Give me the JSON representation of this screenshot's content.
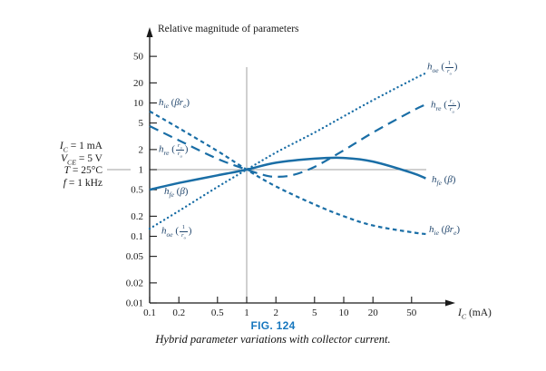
{
  "colors": {
    "curve": "#1a6ea6",
    "curve_label_text": "#24486e",
    "caption_accent": "#1777be",
    "reference_line": "#a0a0a0",
    "axis": "#1a1a1a"
  },
  "y_axis_title": "Relative magnitude of parameters",
  "conditions": [
    [
      {
        "t": "I",
        "i": 1
      },
      {
        "t": "C",
        "sub": 1,
        "i": 1
      },
      {
        "t": " = 1 mA"
      }
    ],
    [
      {
        "t": "V",
        "i": 1
      },
      {
        "t": "CE",
        "sub": 1,
        "i": 1
      },
      {
        "t": " = 5 V"
      }
    ],
    [
      {
        "t": "T",
        "i": 1
      },
      {
        "t": " = 25°C"
      }
    ],
    [
      {
        "t": "f",
        "i": 1
      },
      {
        "t": " = 1 kHz"
      }
    ]
  ],
  "x_axis": {
    "label_plain": "I_C (mA)",
    "label": [
      {
        "t": "I",
        "i": 1
      },
      {
        "t": "C",
        "sub": 1,
        "i": 1
      },
      {
        "t": " (mA)"
      }
    ],
    "tick_labels": [
      "0.1",
      "0.2",
      "0.5",
      "1",
      "2",
      "5",
      "10",
      "20",
      "50"
    ]
  },
  "y_axis": {
    "tick_labels": [
      "50",
      "20",
      "10",
      "5",
      "2",
      "1",
      "0.5",
      "0.2",
      "0.1",
      "0.05",
      "0.02",
      "0.01"
    ]
  },
  "caption": {
    "number": "FIG. 124",
    "text": "Hybrid parameter variations with collector current."
  },
  "chart_data": {
    "type": "line",
    "title": "Hybrid parameter variations with collector current.",
    "xlabel": "I_C (mA)",
    "ylabel": "Relative magnitude of parameters",
    "x_scale": "log",
    "y_scale": "log",
    "x_range": [
      0.1,
      70
    ],
    "y_range": [
      0.01,
      50
    ],
    "reference_lines": {
      "x": 1,
      "y": 1
    },
    "series": [
      {
        "id": "h_oe",
        "label_plain": "h_oe (1/r_o)",
        "dash": "dotted",
        "label": [
          {
            "t": "h",
            "i": 1
          },
          {
            "t": "oe",
            "sub": 1,
            "i": 1
          },
          {
            "t": " ("
          },
          {
            "frac": {
              "num": [
                {
                  "t": "1"
                }
              ],
              "den": [
                {
                  "t": "r",
                  "i": 1
                },
                {
                  "t": "o",
                  "sub": 1,
                  "i": 1
                }
              ]
            }
          },
          {
            "t": ")"
          }
        ],
        "points": [
          [
            0.1,
            0.13
          ],
          [
            0.2,
            0.24
          ],
          [
            0.5,
            0.55
          ],
          [
            1,
            1
          ],
          [
            2,
            1.8
          ],
          [
            5,
            3.6
          ],
          [
            10,
            6.3
          ],
          [
            20,
            11
          ],
          [
            50,
            22
          ],
          [
            70,
            28
          ]
        ]
      },
      {
        "id": "h_re",
        "label_plain": "h_re (r_pi/r_u)",
        "dash": "long-dash",
        "label": [
          {
            "t": "h",
            "i": 1
          },
          {
            "t": "re",
            "sub": 1,
            "i": 1
          },
          {
            "t": " ("
          },
          {
            "frac": {
              "num": [
                {
                  "t": "r",
                  "i": 1
                },
                {
                  "t": "π",
                  "sub": 1,
                  "i": 1
                }
              ],
              "den": [
                {
                  "t": "r",
                  "i": 1
                },
                {
                  "t": "u",
                  "sub": 1,
                  "i": 1
                }
              ]
            }
          },
          {
            "t": ")"
          }
        ],
        "points": [
          [
            0.1,
            4.5
          ],
          [
            0.2,
            2.75
          ],
          [
            0.5,
            1.45
          ],
          [
            1,
            1
          ],
          [
            1.5,
            0.83
          ],
          [
            2,
            0.78
          ],
          [
            3,
            0.83
          ],
          [
            5,
            1.1
          ],
          [
            10,
            1.95
          ],
          [
            20,
            3.6
          ],
          [
            50,
            7.5
          ],
          [
            70,
            9.5
          ]
        ]
      },
      {
        "id": "h_fe",
        "label_plain": "h_fe (beta)",
        "dash": "solid",
        "label": [
          {
            "t": "h",
            "i": 1
          },
          {
            "t": "fe",
            "sub": 1,
            "i": 1
          },
          {
            "t": " ("
          },
          {
            "t": "β",
            "i": 1
          },
          {
            "t": ")"
          }
        ],
        "points": [
          [
            0.1,
            0.5
          ],
          [
            0.2,
            0.63
          ],
          [
            0.5,
            0.82
          ],
          [
            1,
            1
          ],
          [
            2,
            1.27
          ],
          [
            5,
            1.46
          ],
          [
            10,
            1.5
          ],
          [
            20,
            1.32
          ],
          [
            50,
            0.9
          ],
          [
            70,
            0.74
          ]
        ]
      },
      {
        "id": "h_ie",
        "label_plain": "h_ie (beta r_e)",
        "dash": "short-dash",
        "label": [
          {
            "t": "h",
            "i": 1
          },
          {
            "t": "ie",
            "sub": 1,
            "i": 1
          },
          {
            "t": " ("
          },
          {
            "t": "β",
            "i": 1
          },
          {
            "t": "r",
            "i": 1
          },
          {
            "t": "e",
            "sub": 1,
            "i": 1
          },
          {
            "t": ")"
          }
        ],
        "points": [
          [
            0.1,
            7.5
          ],
          [
            0.2,
            4.2
          ],
          [
            0.5,
            1.9
          ],
          [
            1,
            1
          ],
          [
            2,
            0.56
          ],
          [
            5,
            0.3
          ],
          [
            10,
            0.2
          ],
          [
            20,
            0.145
          ],
          [
            50,
            0.115
          ],
          [
            70,
            0.108
          ]
        ]
      }
    ]
  }
}
